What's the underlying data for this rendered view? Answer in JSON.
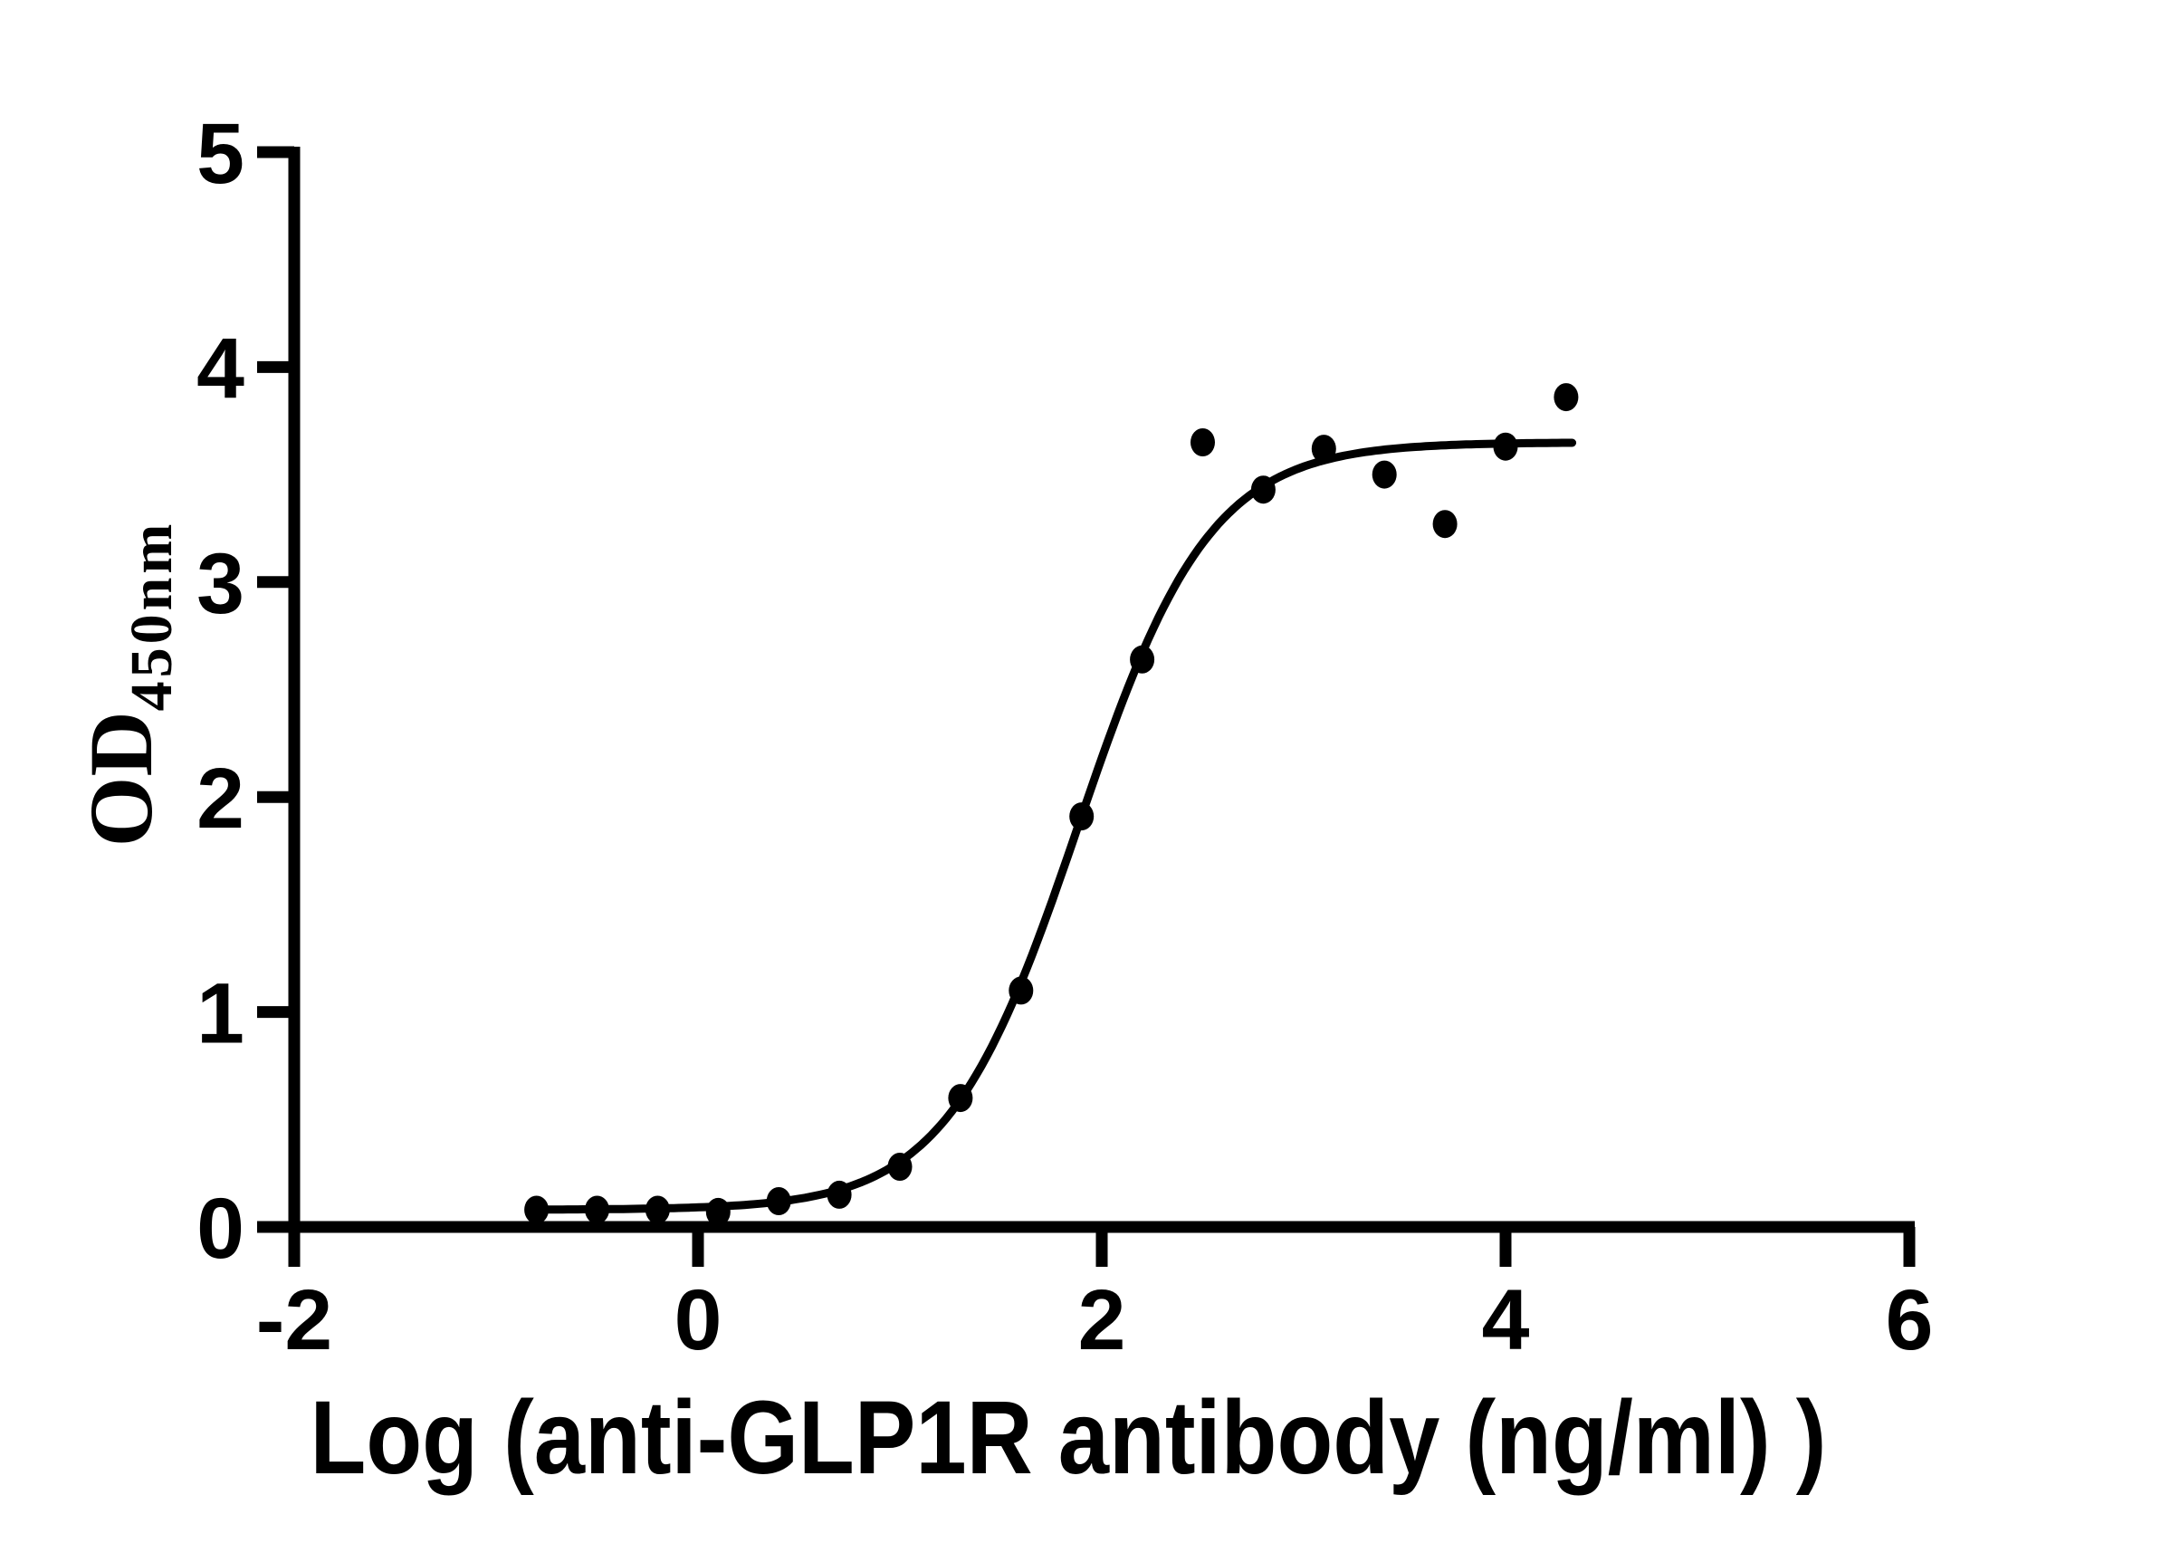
{
  "figure": {
    "background_color": "#ffffff",
    "ink_color": "#000000"
  },
  "chart_data": {
    "type": "scatter",
    "title": "",
    "xlabel": "Log (anti-GLP1R antibody (ng/ml) )",
    "ylabel_main": "OD",
    "ylabel_sub": "450nm",
    "xlim": [
      -2,
      6
    ],
    "ylim": [
      0,
      5
    ],
    "grid": false,
    "legend": "none",
    "x_ticks": [
      -2,
      0,
      2,
      4,
      6
    ],
    "x_tick_labels": [
      "-2",
      "0",
      "2",
      "4",
      "6"
    ],
    "y_ticks": [
      0,
      1,
      2,
      3,
      4,
      5
    ],
    "y_tick_labels": [
      "0",
      "1",
      "2",
      "3",
      "4",
      "5"
    ],
    "points": {
      "x": [
        -0.8,
        -0.5,
        -0.2,
        0.1,
        0.4,
        0.7,
        1.0,
        1.3,
        1.6,
        1.9,
        2.2,
        2.5,
        2.8,
        3.1,
        3.4,
        3.7,
        4.0,
        4.3
      ],
      "y": [
        0.08,
        0.08,
        0.08,
        0.07,
        0.12,
        0.15,
        0.28,
        0.6,
        1.1,
        1.91,
        2.64,
        3.65,
        3.43,
        3.62,
        3.5,
        3.27,
        3.63,
        3.86
      ]
    },
    "fit_curve": {
      "model": "four-parameter-logistic",
      "bottom": 0.08,
      "top": 3.65,
      "log_ec50": 1.883,
      "hill_slope": 1.33,
      "x_start": -0.82,
      "x_end": 4.34
    }
  }
}
